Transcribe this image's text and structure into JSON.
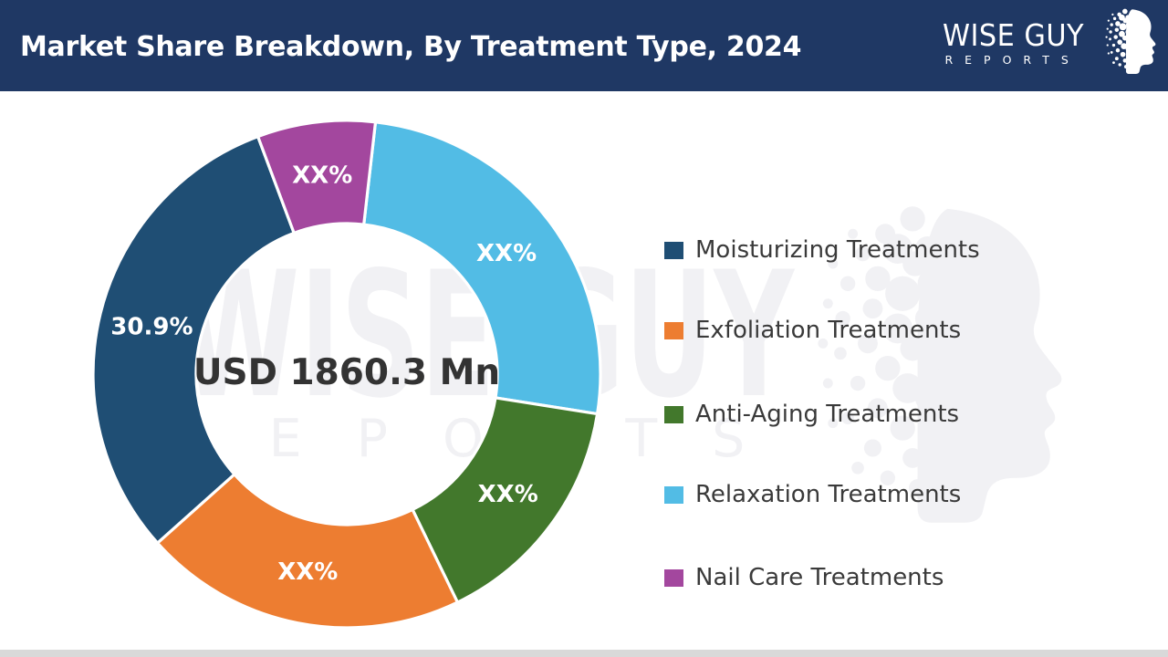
{
  "header": {
    "title": "Market Share Breakdown, By Treatment Type, 2024",
    "logo": {
      "line1": "WISE GUY",
      "line2": "REPORTS"
    }
  },
  "watermark": {
    "line1": "WISE GUY",
    "line2": "REPORTS"
  },
  "chart_data": {
    "type": "donut",
    "title": "Market Share Breakdown, By Treatment Type, 2024",
    "center_label": "USD 1860.3 Mn",
    "start_angle_deg": 6.5,
    "legend_position": "right",
    "gap_color": "#FFFFFF",
    "series": [
      {
        "name": "Moisturizing Treatments",
        "value_pct": 30.9,
        "label": "30.9%",
        "color": "#1F4E74"
      },
      {
        "name": "Exfoliation Treatments",
        "value_pct": 20.6,
        "label": "XX%",
        "color": "#ED7D31"
      },
      {
        "name": "Anti-Aging Treatments",
        "value_pct": 15.3,
        "label": "XX%",
        "color": "#42782C"
      },
      {
        "name": "Relaxation Treatments",
        "value_pct": 25.7,
        "label": "XX%",
        "color": "#52BCE5"
      },
      {
        "name": "Nail Care Treatments",
        "value_pct": 7.5,
        "label": "XX%",
        "color": "#A3479E"
      }
    ],
    "draw_order": [
      "Relaxation Treatments",
      "Anti-Aging Treatments",
      "Exfoliation Treatments",
      "Moisturizing Treatments",
      "Nail Care Treatments"
    ]
  },
  "palette": {
    "header_bg": "#1F3864",
    "center_text": "#333333",
    "legend_text": "#3A3A3A",
    "bottom_bar": "#D9D9D9",
    "watermark": "#F1F1F4",
    "percent_label_text": "#FFFFFF"
  }
}
